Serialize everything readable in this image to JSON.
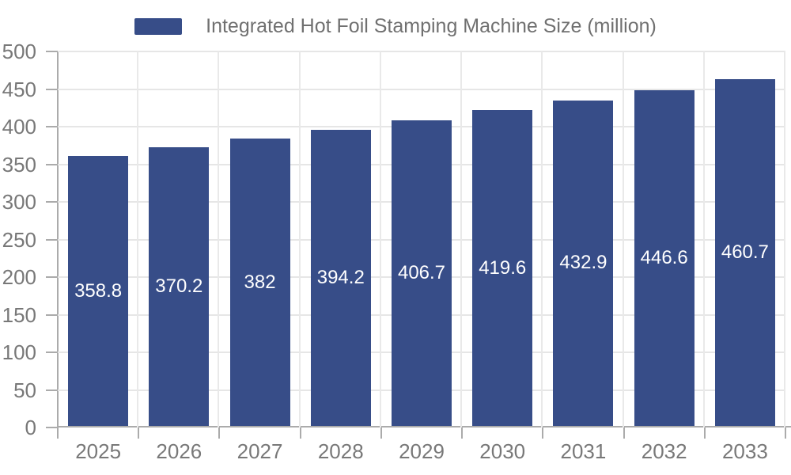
{
  "legend": {
    "label": "Integrated Hot Foil Stamping Machine Size (million)"
  },
  "colors": {
    "bar": "#374d88",
    "value_label": "#ffffff",
    "axis_text": "#787878",
    "legend_text": "#707070",
    "grid_line": "#e6e6e6",
    "axis_line": "#ababab",
    "background": "#ffffff"
  },
  "chart_data": {
    "type": "bar",
    "title": "",
    "xlabel": "",
    "ylabel": "",
    "categories": [
      "2025",
      "2026",
      "2027",
      "2028",
      "2029",
      "2030",
      "2031",
      "2032",
      "2033"
    ],
    "series": [
      {
        "name": "Integrated Hot Foil Stamping Machine Size (million)",
        "values": [
          358.8,
          370.2,
          382,
          394.2,
          406.7,
          419.6,
          432.9,
          446.6,
          460.7
        ]
      }
    ],
    "value_labels": [
      "358.8",
      "370.2",
      "382",
      "394.2",
      "406.7",
      "419.6",
      "432.9",
      "446.6",
      "460.7"
    ],
    "ylim": [
      0,
      500
    ],
    "yticks": [
      0,
      50,
      100,
      150,
      200,
      250,
      300,
      350,
      400,
      450,
      500
    ],
    "grid": true,
    "legend_position": "top"
  }
}
